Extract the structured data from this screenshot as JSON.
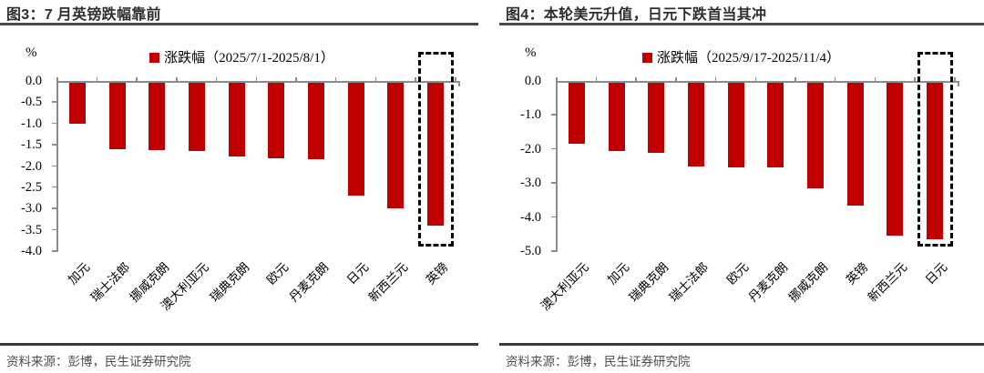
{
  "colors": {
    "bar": "#c00000",
    "axis": "#8c8c8c",
    "title_text": "#2e2e2e",
    "rule": "#4a4a4a",
    "source_text": "#4d4d4d",
    "highlight_border": "#000000"
  },
  "chart_data": [
    {
      "type": "bar",
      "title": "图3：7 月英镑跌幅靠前",
      "unit": "%",
      "legend": "涨跌幅（2025/7/1-2025/8/1）",
      "categories": [
        "加元",
        "瑞士法郎",
        "挪威克朗",
        "澳大利亚元",
        "瑞典克朗",
        "欧元",
        "丹麦克朗",
        "日元",
        "新西兰元",
        "英镑"
      ],
      "values": [
        -1.0,
        -1.6,
        -1.62,
        -1.65,
        -1.78,
        -1.82,
        -1.85,
        -2.7,
        -3.0,
        -3.4
      ],
      "ylim": [
        0.0,
        -4.0
      ],
      "ytick_step": 0.5,
      "ytick_labels": [
        "0.0",
        "-0.5",
        "-1.0",
        "-1.5",
        "-2.0",
        "-2.5",
        "-3.0",
        "-3.5",
        "-4.0"
      ],
      "grid": false,
      "legend_position": "top-center",
      "highlight_index": 9,
      "source": "资料来源：彭博，民生证券研究院"
    },
    {
      "type": "bar",
      "title": "图4：本轮美元升值，日元下跌首当其冲",
      "unit": "%",
      "legend": "涨跌幅（2025/9/17-2025/11/4）",
      "categories": [
        "澳大利亚元",
        "加元",
        "瑞典克朗",
        "瑞士法郎",
        "欧元",
        "丹麦克朗",
        "挪威克朗",
        "英镑",
        "新西兰元",
        "日元"
      ],
      "values": [
        -1.85,
        -2.05,
        -2.1,
        -2.5,
        -2.55,
        -2.55,
        -3.15,
        -3.65,
        -4.55,
        -4.65
      ],
      "ylim": [
        0.0,
        -5.0
      ],
      "ytick_step": 1.0,
      "ytick_labels": [
        "0.0",
        "-1.0",
        "-2.0",
        "-3.0",
        "-4.0",
        "-5.0"
      ],
      "grid": false,
      "legend_position": "top-center",
      "highlight_index": 9,
      "source": "资料来源：彭博，民生证券研究院"
    }
  ]
}
